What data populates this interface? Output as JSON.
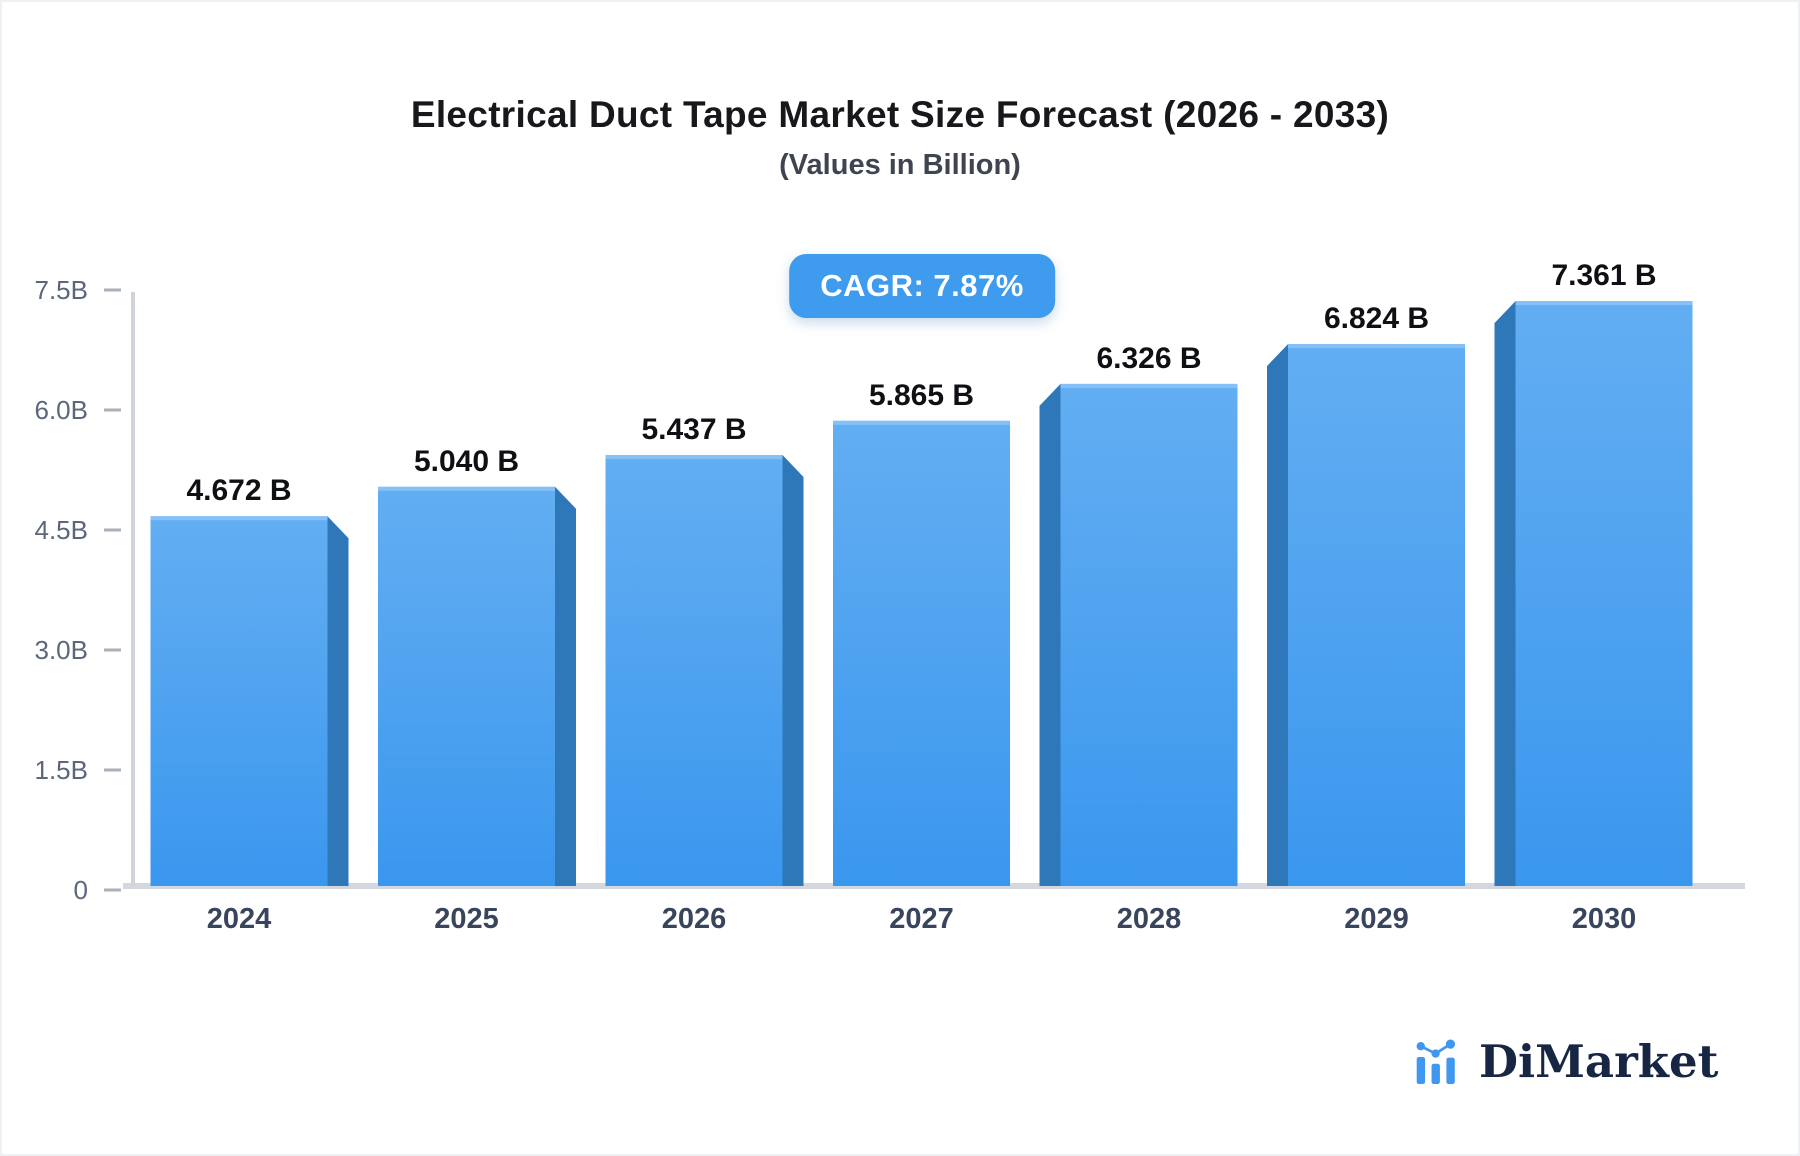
{
  "chart_data": {
    "type": "bar",
    "title": "Electrical Duct Tape Market Size Forecast (2026 - 2033)",
    "subtitle": "(Values in Billion)",
    "annotation": "CAGR: 7.87%",
    "categories": [
      "2024",
      "2025",
      "2026",
      "2027",
      "2028",
      "2029",
      "2030"
    ],
    "values": [
      4.672,
      5.04,
      5.437,
      5.865,
      6.326,
      6.824,
      7.361
    ],
    "value_labels": [
      "4.672 B",
      "5.040 B",
      "5.437 B",
      "5.865 B",
      "6.326 B",
      "6.824 B",
      "7.361 B"
    ],
    "xlabel": "",
    "ylabel": "",
    "ylim": [
      0,
      7.5
    ],
    "yticks": [
      {
        "value": 0,
        "label": "0"
      },
      {
        "value": 1.5,
        "label": "1.5B"
      },
      {
        "value": 3.0,
        "label": "3.0B"
      },
      {
        "value": 4.5,
        "label": "4.5B"
      },
      {
        "value": 6.0,
        "label": "6.0B"
      },
      {
        "value": 7.5,
        "label": "7.5B"
      }
    ],
    "grid": false,
    "legend": null,
    "bar_style": "3d-beveled"
  },
  "colors": {
    "bar_top": "#63AEF2",
    "bar_bottom": "#3A97EE",
    "bar_side": "#2E77B8",
    "bar_highlight": "#85C1F6",
    "badge_bg": "#3F9BEE",
    "badge_text": "#FFFFFF",
    "axis_line": "#CFD3DA",
    "baseline": "#D4D8DE",
    "tick_dash": "#A9B1BB",
    "tick_text": "#5C677C",
    "x_label_text": "#39455C",
    "value_label_text": "#0E1014",
    "logo_blue": "#3F97EF",
    "logo_text_color": "#172642"
  },
  "logo": {
    "text": "DiMarket"
  }
}
